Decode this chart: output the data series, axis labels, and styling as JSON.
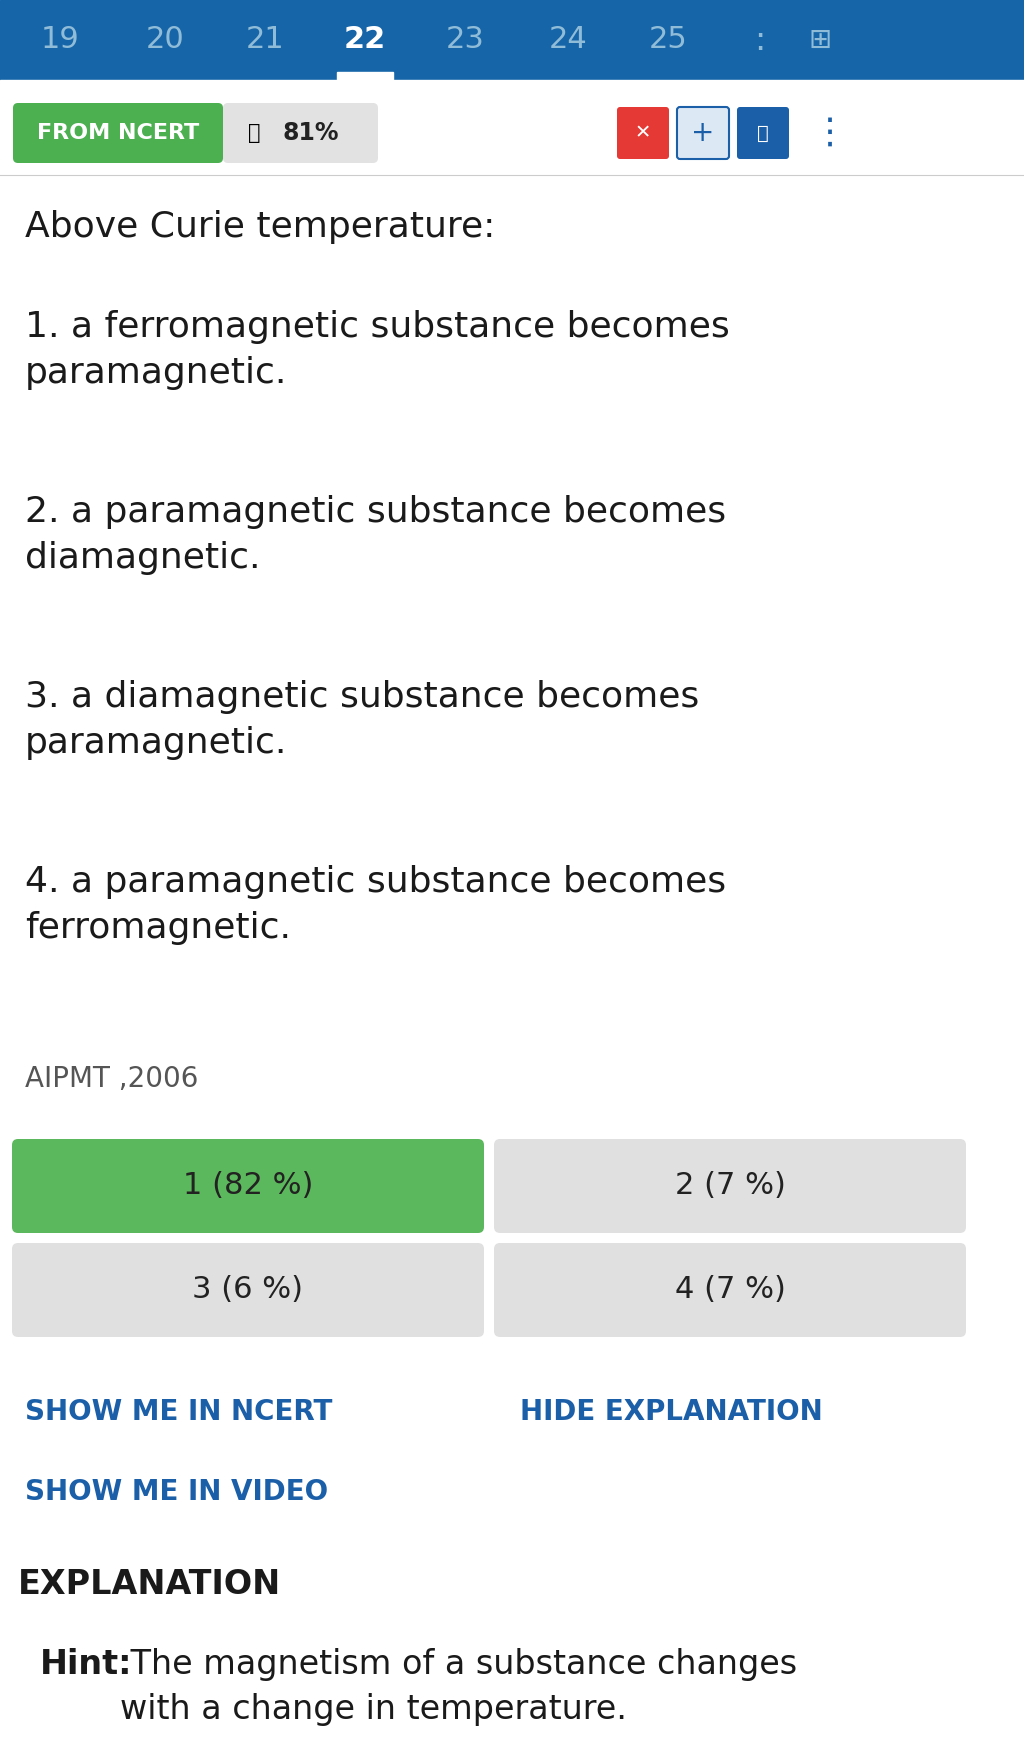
{
  "bg_color": "#ffffff",
  "header_bg": "#1565a8",
  "header_numbers": [
    "19",
    "20",
    "21",
    "22",
    "23",
    "24",
    "25"
  ],
  "header_active": "22",
  "header_active_color": "#ffffff",
  "header_inactive_color": "#90bcd8",
  "from_ncert_bg": "#4caf50",
  "from_ncert_text": "FROM NCERT",
  "from_ncert_text_color": "#ffffff",
  "like_badge_bg": "#e2e2e2",
  "like_text": "81%",
  "question_text": "Above Curie temperature:",
  "options": [
    "1. a ferromagnetic substance becomes\nparamagnetic.",
    "2. a paramagnetic substance becomes\ndiamagnetic.",
    "3. a diamagnetic substance becomes\nparamagnetic.",
    "4. a paramagnetic substance becomes\nferromagnetic."
  ],
  "source_text": "AIPMT ,2006",
  "answer_buttons": [
    {
      "label": "1 (82 %)",
      "bg": "#5cb85c",
      "text_color": "#222222"
    },
    {
      "label": "2 (7 %)",
      "bg": "#e0e0e0",
      "text_color": "#222222"
    },
    {
      "label": "3 (6 %)",
      "bg": "#e0e0e0",
      "text_color": "#222222"
    },
    {
      "label": "4 (7 %)",
      "bg": "#e0e0e0",
      "text_color": "#222222"
    }
  ],
  "link_color": "#1a5fa8",
  "show_ncert": "SHOW ME IN NCERT",
  "hide_explanation": "HIDE EXPLANATION",
  "show_video": "SHOW ME IN VIDEO",
  "explanation_title": "EXPLANATION",
  "hint_bold": "Hint:",
  "hint_rest": " The magnetism of a substance changes\nwith a change in temperature."
}
